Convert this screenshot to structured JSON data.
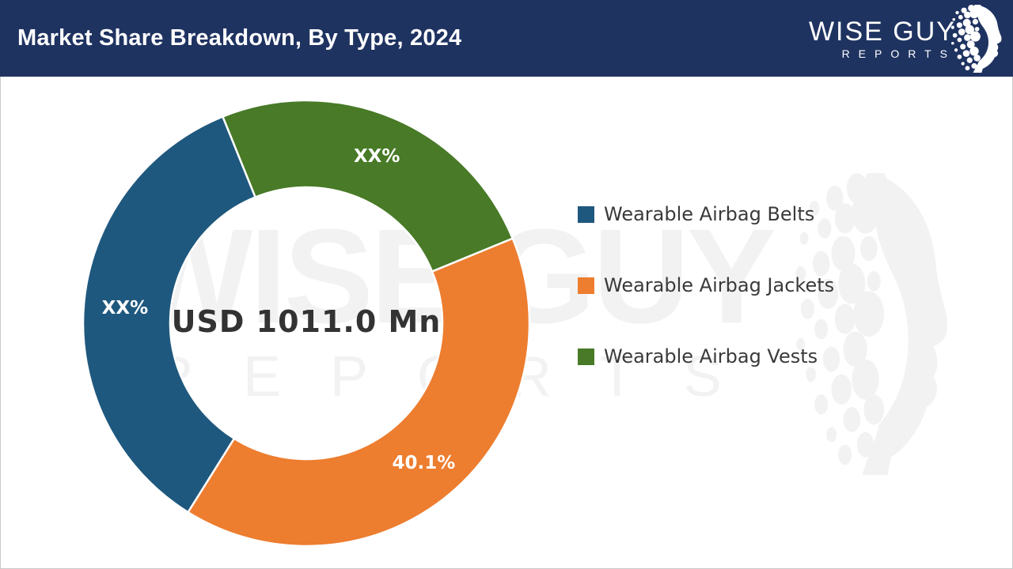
{
  "header": {
    "title": "Market Share Breakdown, By Type, 2024",
    "logo": {
      "line1": "WISE GUY",
      "line2": "REPORTS"
    }
  },
  "watermark": {
    "line1": "WISE GUY",
    "line2": "REPORTS"
  },
  "chart_data": {
    "type": "pie",
    "subtype": "donut",
    "center_label": "USD 1011.0 Mn",
    "start_angle_deg": -22,
    "segments": [
      {
        "name": "Wearable Airbag Belts",
        "value_pct": 35.0,
        "display_label": "XX%",
        "color": "#1f587e"
      },
      {
        "name": "Wearable Airbag Jackets",
        "value_pct": 40.1,
        "display_label": "40.1%",
        "color": "#ed7d2f"
      },
      {
        "name": "Wearable Airbag Vests",
        "value_pct": 24.9,
        "display_label": "XX%",
        "color": "#487a27"
      }
    ],
    "draw_order": [
      2,
      1,
      0
    ],
    "legend_position": "right",
    "labels_inside": true,
    "separator_color": "#ffffff"
  },
  "colors": {
    "header_bg": "#1f3361",
    "title_text": "#ffffff",
    "center_text": "#333333",
    "legend_text": "#3a3a3a",
    "watermark": "#f2f2f2",
    "border": "#c9c9c9"
  }
}
